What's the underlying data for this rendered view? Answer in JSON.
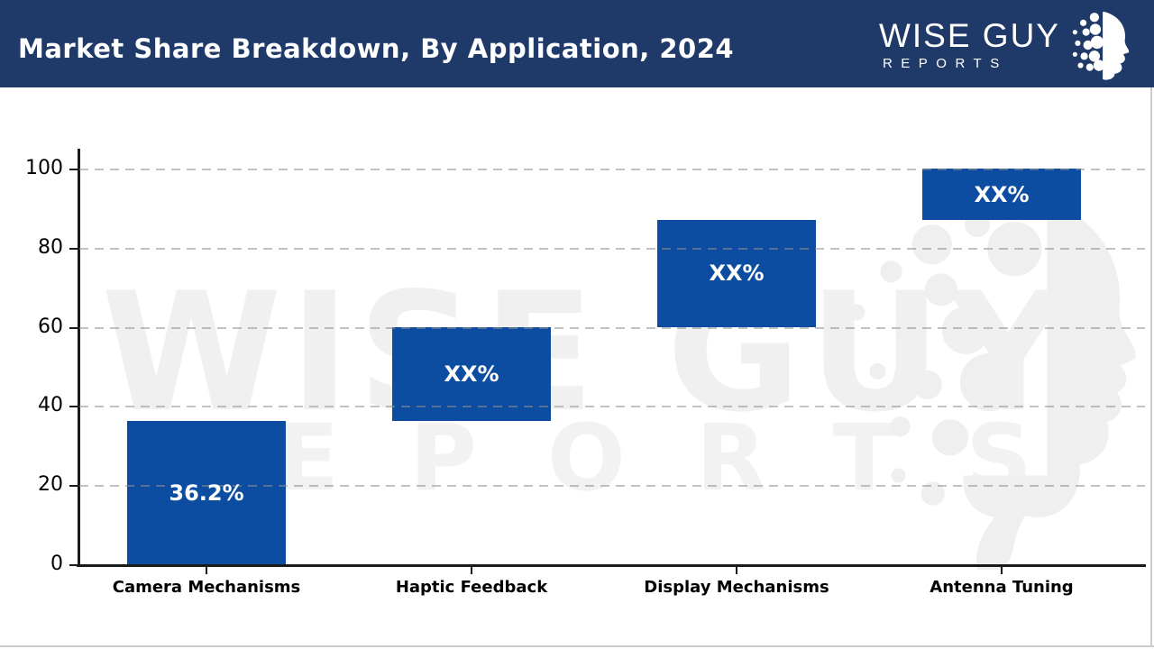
{
  "header": {
    "title": "Market Share Breakdown, By Application, 2024",
    "logo": {
      "wordmark": "WISE GUY",
      "reports": "REPORTS"
    }
  },
  "watermark": {
    "line1": "WISE GUY",
    "line2": "REPORTS"
  },
  "chart_data": {
    "type": "bar",
    "subtype": "floating-waterfall",
    "title": "Market Share Breakdown, By Application, 2024",
    "categories": [
      "Camera Mechanisms",
      "Haptic Feedback",
      "Display Mechanisms",
      "Antenna Tuning"
    ],
    "bars": [
      {
        "category": "Camera Mechanisms",
        "label": "36.2%",
        "start": 0,
        "end": 36.2
      },
      {
        "category": "Haptic Feedback",
        "label": "XX%",
        "start": 36.2,
        "end": 60
      },
      {
        "category": "Display Mechanisms",
        "label": "XX%",
        "start": 60,
        "end": 87
      },
      {
        "category": "Antenna Tuning",
        "label": "XX%",
        "start": 87,
        "end": 100
      }
    ],
    "yticks": [
      0,
      20,
      40,
      60,
      80,
      100
    ],
    "ylim": [
      0,
      105
    ],
    "grid": "horizontal-dashed",
    "legend": "none",
    "colors": {
      "bar": "#0c4da2",
      "header": "#1f3a68",
      "grid": "#8f8f8f",
      "axis": "#1a1a1a",
      "bar_label": "#ffffff",
      "tick_label": "#000000"
    }
  }
}
